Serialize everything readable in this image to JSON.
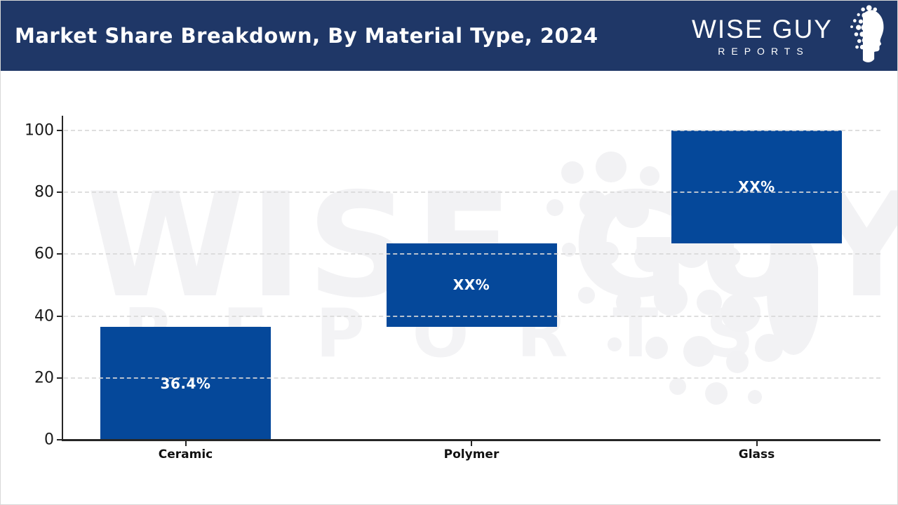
{
  "header": {
    "title": "Market Share Breakdown, By Material Type, 2024",
    "logo": {
      "primary": "WISE GUY",
      "secondary": "REPORTS"
    }
  },
  "watermark": {
    "primary": "WISE GUY",
    "secondary": "REPORTS"
  },
  "colors": {
    "header_bg": "#1f3767",
    "bar": "#05489a",
    "bar_label": "#ffffff",
    "grid": "#d9d9d9",
    "axis": "#262626",
    "watermark": "#f2f2f4",
    "title_text": "#ffffff"
  },
  "chart_data": {
    "type": "bar",
    "subtype": "waterfall",
    "title": "Market Share Breakdown, By Material Type, 2024",
    "categories": [
      "Ceramic",
      "Polymer",
      "Glass"
    ],
    "segments": [
      {
        "category": "Ceramic",
        "start": 0,
        "end": 36.4,
        "label": "36.4%"
      },
      {
        "category": "Polymer",
        "start": 36.4,
        "end": 63.6,
        "label": "XX%"
      },
      {
        "category": "Glass",
        "start": 63.6,
        "end": 100,
        "label": "XX%"
      }
    ],
    "xlabel": "",
    "ylabel": "",
    "yticks": [
      0,
      20,
      40,
      60,
      80,
      100
    ],
    "ytick_labels": [
      "0",
      "20",
      "40",
      "60",
      "80",
      "100"
    ],
    "ylim": [
      0,
      105
    ],
    "grid": "horizontal-dashed",
    "legend": "none"
  }
}
